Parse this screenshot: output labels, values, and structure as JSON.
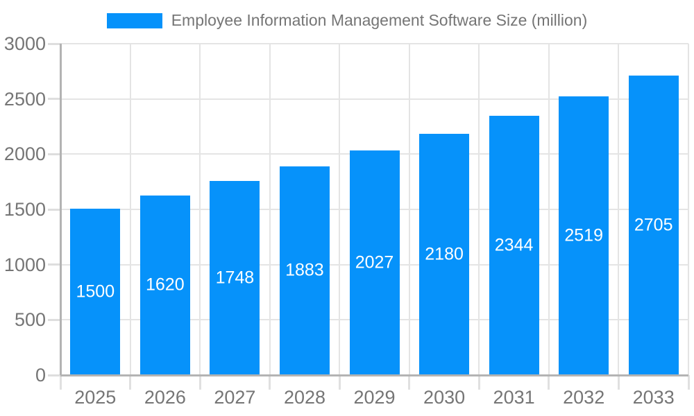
{
  "page": {
    "background_color": "#ffffff"
  },
  "legend": {
    "label": "Employee Information Management Software Size (million)",
    "swatch_color": "#0692fa"
  },
  "chart_data": {
    "type": "bar",
    "title": "Employee Information Management Software Size (million)",
    "categories": [
      "2025",
      "2026",
      "2027",
      "2028",
      "2029",
      "2030",
      "2031",
      "2032",
      "2033"
    ],
    "values": [
      1500,
      1620,
      1748,
      1883,
      2027,
      2180,
      2344,
      2519,
      2705
    ],
    "xlabel": "",
    "ylabel": "",
    "ylim": [
      0,
      3000
    ],
    "yticks": [
      0,
      500,
      1000,
      1500,
      2000,
      2500,
      3000
    ],
    "grid": true,
    "legend_position": "top-center",
    "bar_labels_inside": true,
    "bar_color": "#0692fa",
    "bar_label_color": "#ffffff",
    "axis_text_color": "#757575",
    "grid_color": "#e4e4e4",
    "axis_line_color": "#b3b3b3"
  }
}
